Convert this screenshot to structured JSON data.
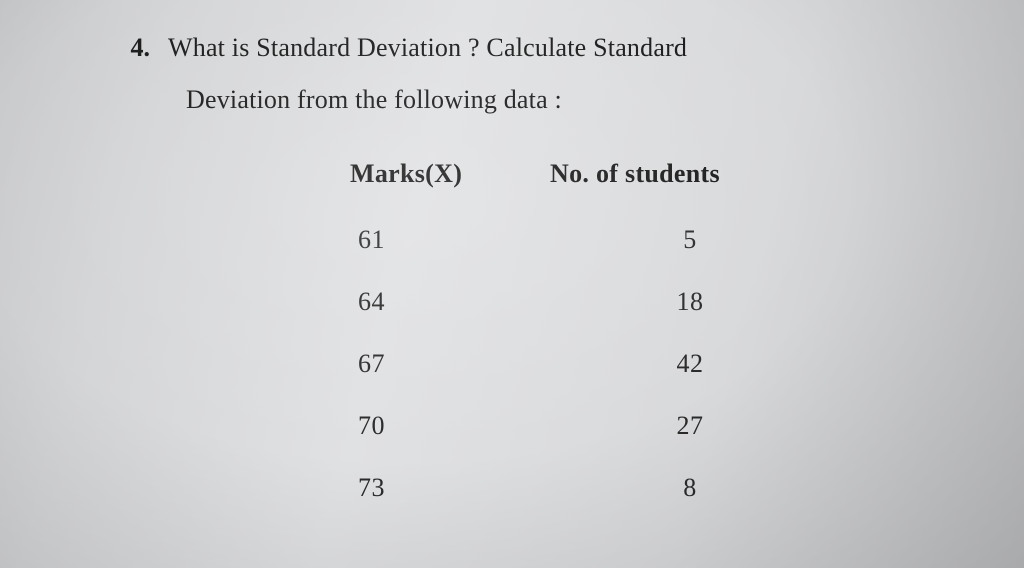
{
  "question": {
    "number": "4.",
    "line1": "What is Standard Deviation ? Calculate Standard",
    "line2": "Deviation from the following data :"
  },
  "table": {
    "header": {
      "marks": "Marks(X)",
      "students": "No. of students"
    },
    "rows": [
      {
        "marks": "61",
        "students": "5"
      },
      {
        "marks": "64",
        "students": "18"
      },
      {
        "marks": "67",
        "students": "42"
      },
      {
        "marks": "70",
        "students": "27"
      },
      {
        "marks": "73",
        "students": "8"
      }
    ]
  },
  "style": {
    "page_bg_start": "#c8c9cb",
    "page_bg_mid": "#e0e1e3",
    "page_bg_end": "#c0c1c3",
    "text_color": "#1a1a1a",
    "question_fontsize": 26,
    "header_fontsize": 26,
    "cell_fontsize": 26,
    "font_family": "Georgia, Times New Roman, serif"
  }
}
